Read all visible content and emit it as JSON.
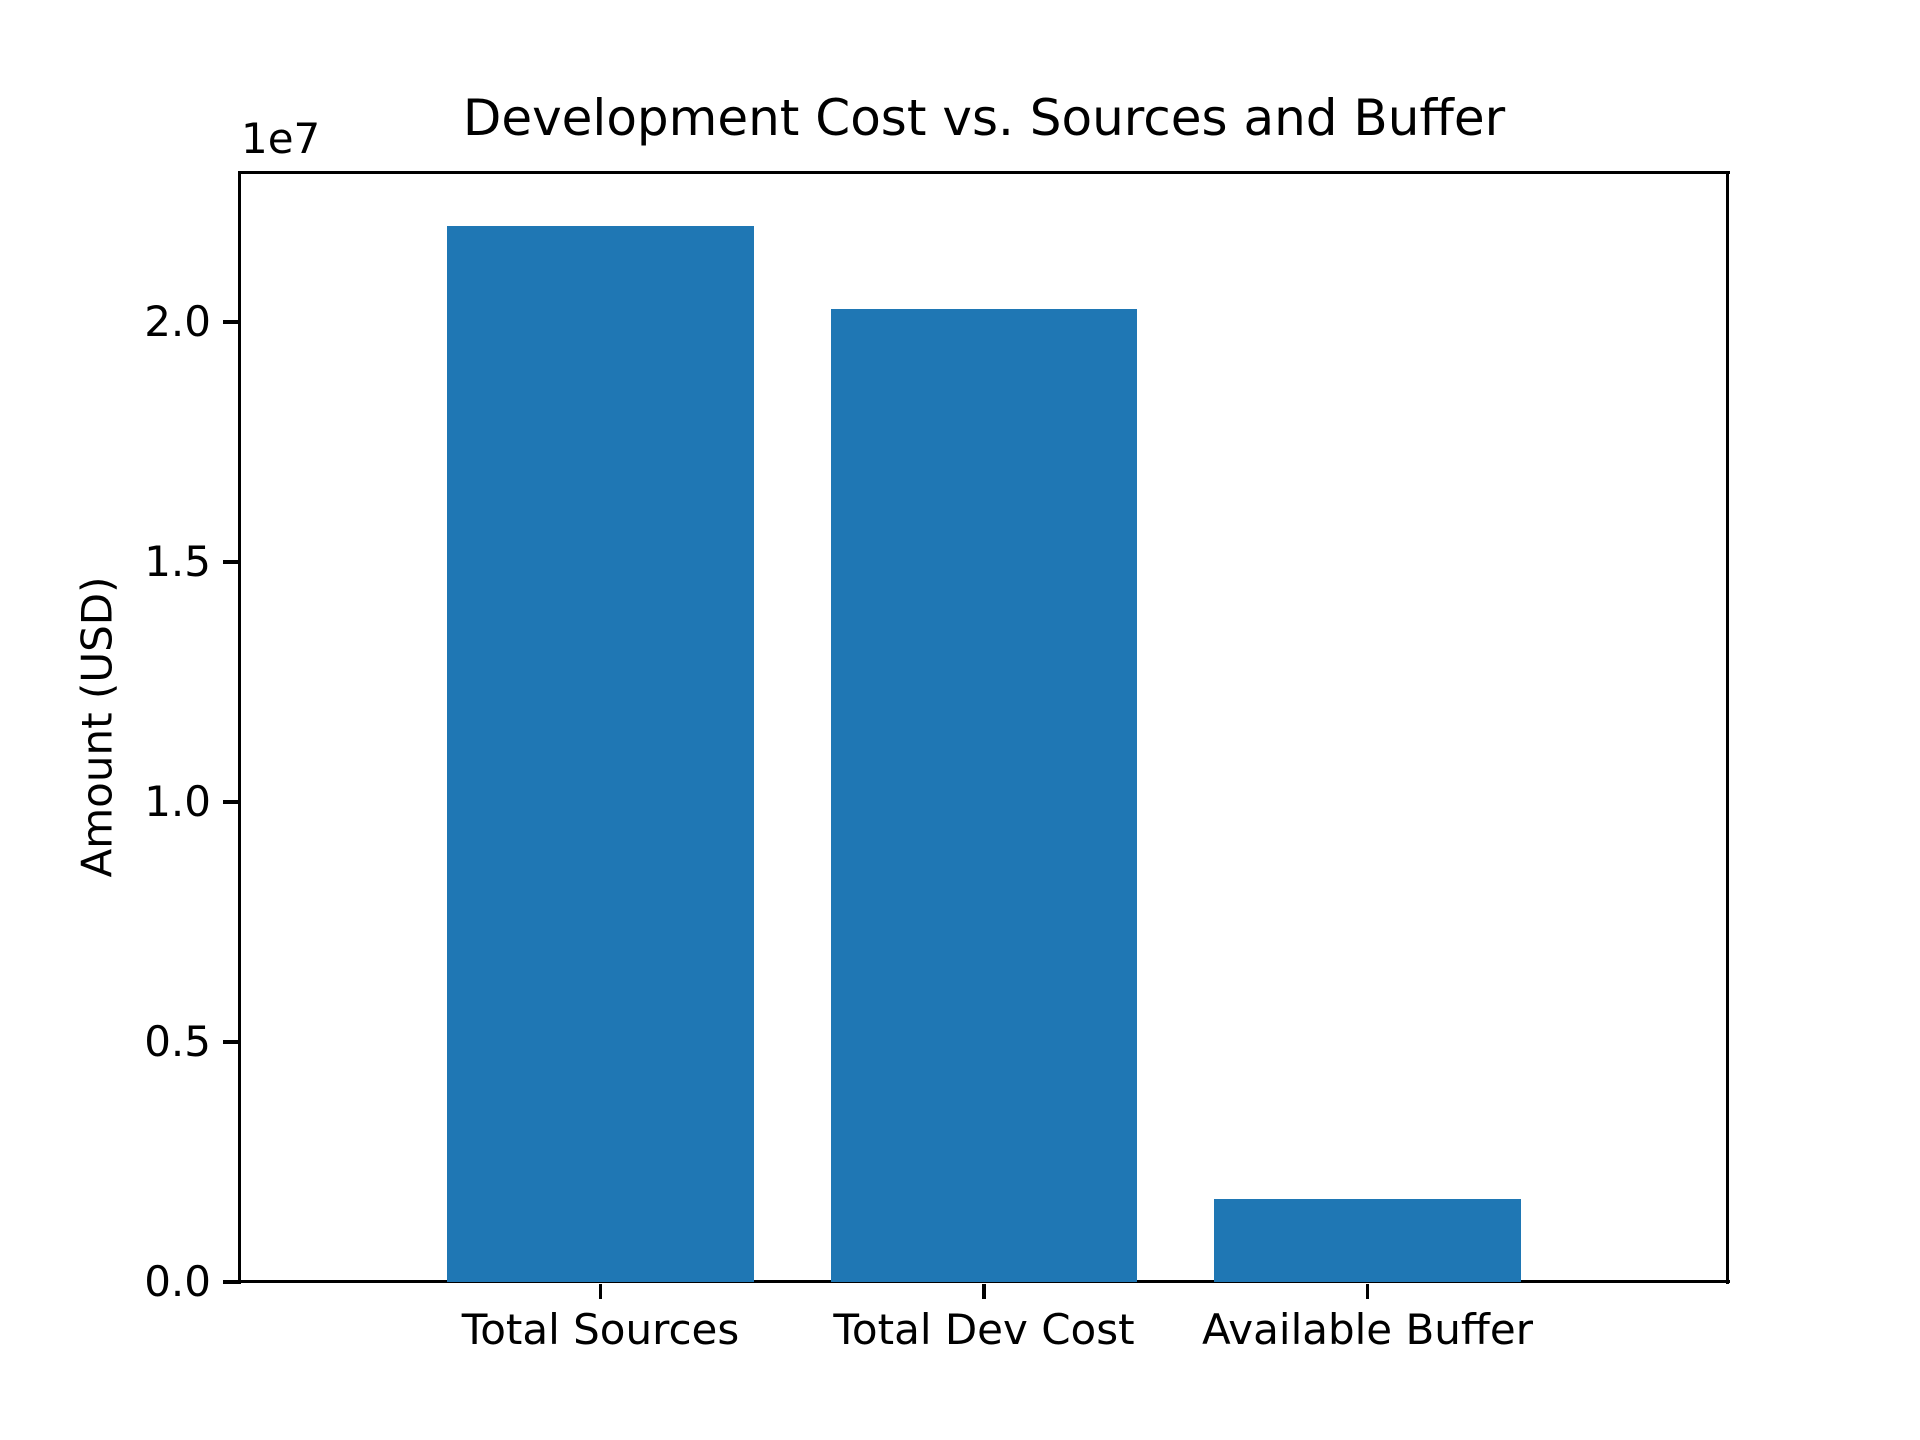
{
  "chart_data": {
    "type": "bar",
    "title": "Development Cost vs. Sources and Buffer",
    "xlabel": "",
    "ylabel": "Amount (USD)",
    "offset_text": "1e7",
    "categories": [
      "Total Sources",
      "Total Dev Cost",
      "Available Buffer"
    ],
    "values": [
      22000000,
      20275000,
      1725000
    ],
    "ylim": [
      0,
      23100000
    ],
    "yticks": [
      0,
      5000000,
      10000000,
      15000000,
      20000000
    ],
    "ytick_labels": [
      "0.0",
      "0.5",
      "1.0",
      "1.5",
      "2.0"
    ],
    "bar_color": "#1f77b4",
    "bar_width_fraction": 0.8,
    "x_margin_units": 0.54,
    "grid": false,
    "legend": null,
    "background_color": "#ffffff",
    "text_color": "#000000"
  }
}
